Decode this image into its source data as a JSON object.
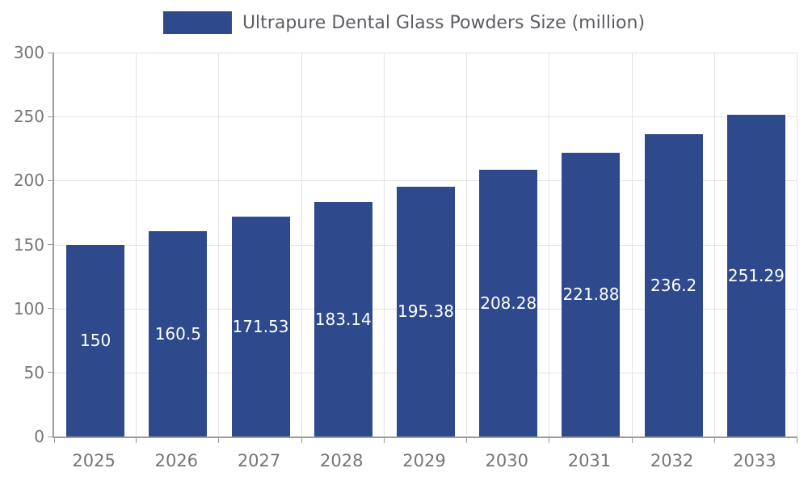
{
  "legend": {
    "label": "Ultrapure Dental Glass Powders Size (million)"
  },
  "chart_data": {
    "type": "bar",
    "title": "Ultrapure Dental Glass Powders Size (million)",
    "categories": [
      "2025",
      "2026",
      "2027",
      "2028",
      "2029",
      "2030",
      "2031",
      "2032",
      "2033"
    ],
    "values": [
      150,
      160.5,
      171.53,
      183.14,
      195.38,
      208.28,
      221.88,
      236.2,
      251.29
    ],
    "xlabel": "",
    "ylabel": "",
    "ylim": [
      0,
      300
    ],
    "yticks": [
      0,
      50,
      100,
      150,
      200,
      250,
      300
    ],
    "grid": true,
    "legend_position": "top",
    "bar_color": "#2e4a8c",
    "value_label_color": "#ffffff",
    "axis_text_color": "#757575",
    "grid_color": "#e3e3e3",
    "axis_line_color": "#9b9b9b"
  }
}
